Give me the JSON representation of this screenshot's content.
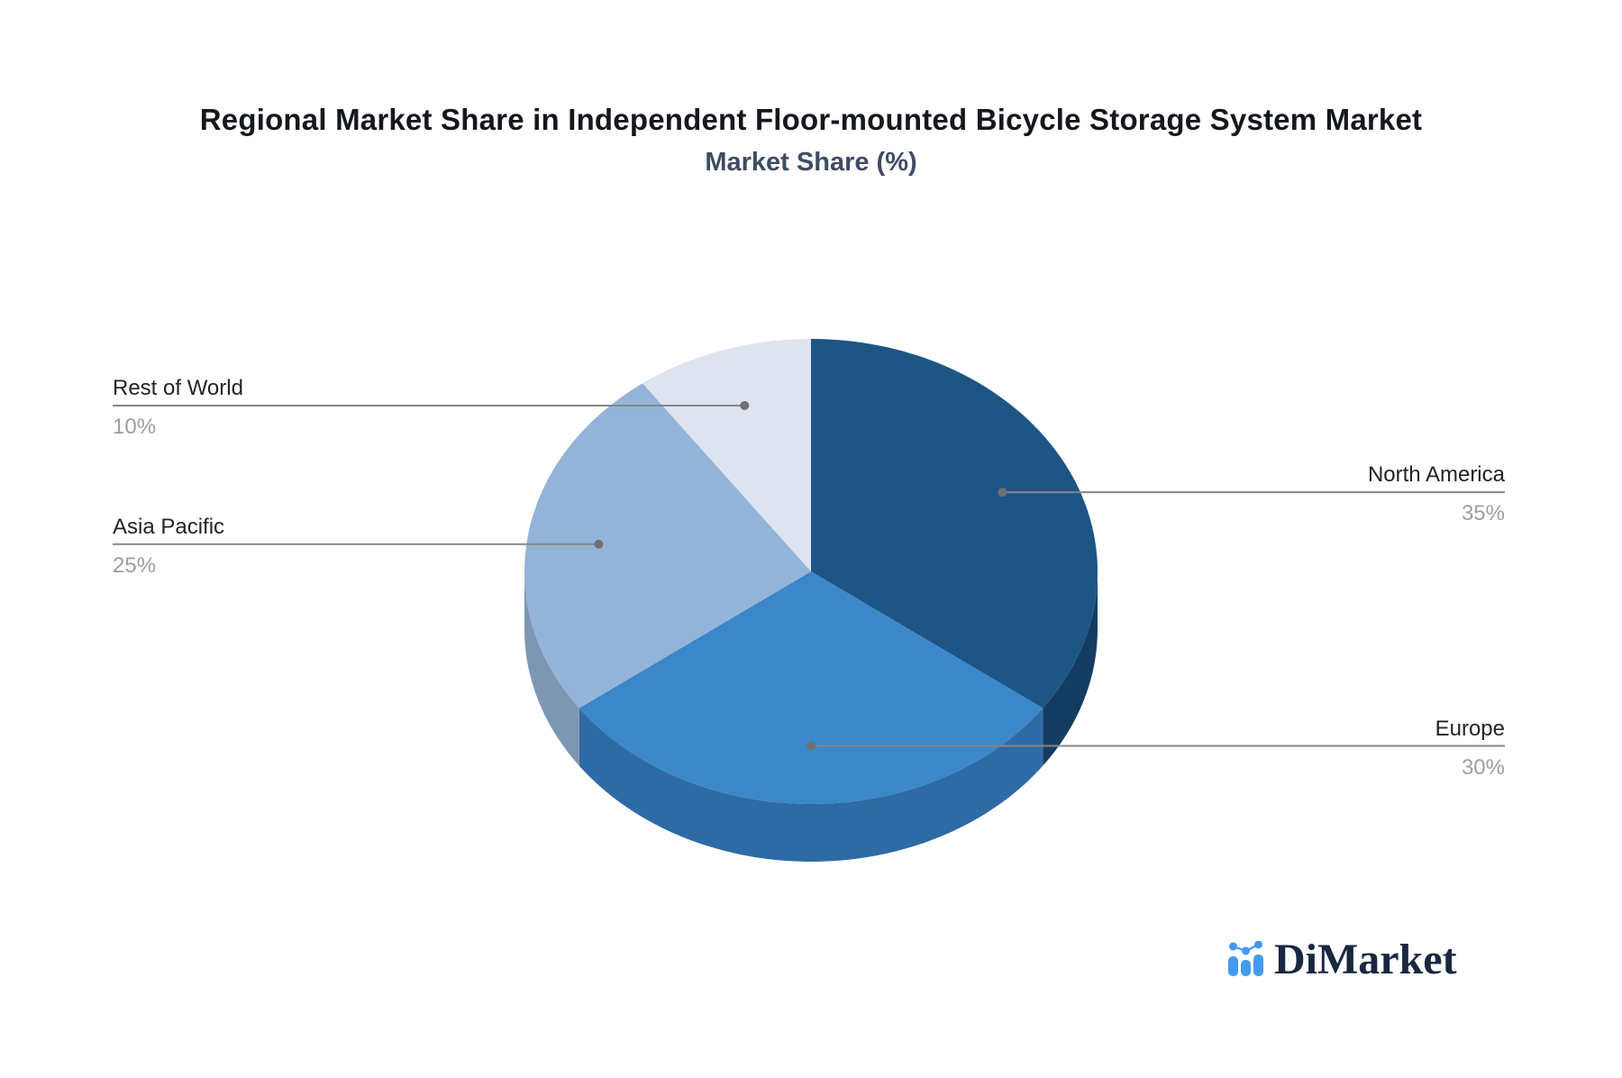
{
  "header": {
    "title": "Regional Market Share in Independent Floor-mounted Bicycle Storage System Market",
    "subtitle": "Market Share (%)"
  },
  "watermark": {
    "brand": "DiMarket",
    "icon": "bar-chart-logo-icon",
    "icon_color": "#4499f2",
    "text_color": "#1a2740"
  },
  "chart_data": {
    "type": "pie",
    "style": "3d",
    "title": "Regional Market Share in Independent Floor-mounted Bicycle Storage System Market",
    "subtitle": "Market Share (%)",
    "unit": "%",
    "start_angle_deg": 0,
    "direction": "clockwise",
    "legend_position": "none",
    "grid": false,
    "categories": [
      "North America",
      "Europe",
      "Asia Pacific",
      "Rest of World"
    ],
    "values": [
      35,
      30,
      25,
      10
    ],
    "slices": [
      {
        "label": "North America",
        "value": 35,
        "display": "35%",
        "color": "#1d5585",
        "side_color": "#143c60",
        "label_side": "right"
      },
      {
        "label": "Europe",
        "value": 30,
        "display": "30%",
        "color": "#3b87c9",
        "side_color": "#2e6ba4",
        "label_side": "right"
      },
      {
        "label": "Asia Pacific",
        "value": 25,
        "display": "25%",
        "color": "#93b4d8",
        "side_color": "#7d97b3",
        "label_side": "left"
      },
      {
        "label": "Rest of World",
        "value": 10,
        "display": "10%",
        "color": "#dde4ef",
        "side_color": "#c5d1e1",
        "label_side": "left"
      }
    ],
    "callout_line_color": "#85878a",
    "callout_dot_color": "#6e7073",
    "label_color": "#212428",
    "pct_color": "#9b9fa4"
  }
}
